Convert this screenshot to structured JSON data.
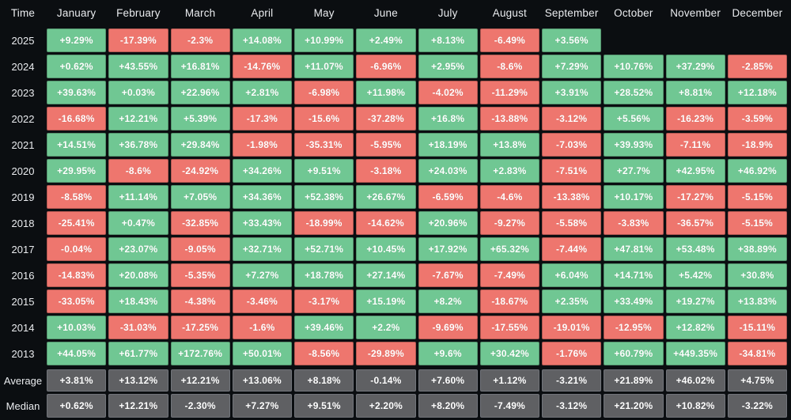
{
  "table": {
    "corner_label": "Time",
    "months": [
      "January",
      "February",
      "March",
      "April",
      "May",
      "June",
      "July",
      "August",
      "September",
      "October",
      "November",
      "December"
    ],
    "rows": [
      {
        "label": "2025",
        "type": "year",
        "values": [
          "+9.29%",
          "-17.39%",
          "-2.3%",
          "+14.08%",
          "+10.99%",
          "+2.49%",
          "+8.13%",
          "-6.49%",
          "+3.56%",
          null,
          null,
          null
        ]
      },
      {
        "label": "2024",
        "type": "year",
        "values": [
          "+0.62%",
          "+43.55%",
          "+16.81%",
          "-14.76%",
          "+11.07%",
          "-6.96%",
          "+2.95%",
          "-8.6%",
          "+7.29%",
          "+10.76%",
          "+37.29%",
          "-2.85%"
        ]
      },
      {
        "label": "2023",
        "type": "year",
        "values": [
          "+39.63%",
          "+0.03%",
          "+22.96%",
          "+2.81%",
          "-6.98%",
          "+11.98%",
          "-4.02%",
          "-11.29%",
          "+3.91%",
          "+28.52%",
          "+8.81%",
          "+12.18%"
        ]
      },
      {
        "label": "2022",
        "type": "year",
        "values": [
          "-16.68%",
          "+12.21%",
          "+5.39%",
          "-17.3%",
          "-15.6%",
          "-37.28%",
          "+16.8%",
          "-13.88%",
          "-3.12%",
          "+5.56%",
          "-16.23%",
          "-3.59%"
        ]
      },
      {
        "label": "2021",
        "type": "year",
        "values": [
          "+14.51%",
          "+36.78%",
          "+29.84%",
          "-1.98%",
          "-35.31%",
          "-5.95%",
          "+18.19%",
          "+13.8%",
          "-7.03%",
          "+39.93%",
          "-7.11%",
          "-18.9%"
        ]
      },
      {
        "label": "2020",
        "type": "year",
        "values": [
          "+29.95%",
          "-8.6%",
          "-24.92%",
          "+34.26%",
          "+9.51%",
          "-3.18%",
          "+24.03%",
          "+2.83%",
          "-7.51%",
          "+27.7%",
          "+42.95%",
          "+46.92%"
        ]
      },
      {
        "label": "2019",
        "type": "year",
        "values": [
          "-8.58%",
          "+11.14%",
          "+7.05%",
          "+34.36%",
          "+52.38%",
          "+26.67%",
          "-6.59%",
          "-4.6%",
          "-13.38%",
          "+10.17%",
          "-17.27%",
          "-5.15%"
        ]
      },
      {
        "label": "2018",
        "type": "year",
        "values": [
          "-25.41%",
          "+0.47%",
          "-32.85%",
          "+33.43%",
          "-18.99%",
          "-14.62%",
          "+20.96%",
          "-9.27%",
          "-5.58%",
          "-3.83%",
          "-36.57%",
          "-5.15%"
        ]
      },
      {
        "label": "2017",
        "type": "year",
        "values": [
          "-0.04%",
          "+23.07%",
          "-9.05%",
          "+32.71%",
          "+52.71%",
          "+10.45%",
          "+17.92%",
          "+65.32%",
          "-7.44%",
          "+47.81%",
          "+53.48%",
          "+38.89%"
        ]
      },
      {
        "label": "2016",
        "type": "year",
        "values": [
          "-14.83%",
          "+20.08%",
          "-5.35%",
          "+7.27%",
          "+18.78%",
          "+27.14%",
          "-7.67%",
          "-7.49%",
          "+6.04%",
          "+14.71%",
          "+5.42%",
          "+30.8%"
        ]
      },
      {
        "label": "2015",
        "type": "year",
        "values": [
          "-33.05%",
          "+18.43%",
          "-4.38%",
          "-3.46%",
          "-3.17%",
          "+15.19%",
          "+8.2%",
          "-18.67%",
          "+2.35%",
          "+33.49%",
          "+19.27%",
          "+13.83%"
        ]
      },
      {
        "label": "2014",
        "type": "year",
        "values": [
          "+10.03%",
          "-31.03%",
          "-17.25%",
          "-1.6%",
          "+39.46%",
          "+2.2%",
          "-9.69%",
          "-17.55%",
          "-19.01%",
          "-12.95%",
          "+12.82%",
          "-15.11%"
        ]
      },
      {
        "label": "2013",
        "type": "year",
        "values": [
          "+44.05%",
          "+61.77%",
          "+172.76%",
          "+50.01%",
          "-8.56%",
          "-29.89%",
          "+9.6%",
          "+30.42%",
          "-1.76%",
          "+60.79%",
          "+449.35%",
          "-34.81%"
        ]
      },
      {
        "label": "Average",
        "type": "summary",
        "values": [
          "+3.81%",
          "+13.12%",
          "+12.21%",
          "+13.06%",
          "+8.18%",
          "-0.14%",
          "+7.60%",
          "+1.12%",
          "-3.21%",
          "+21.89%",
          "+46.02%",
          "+4.75%"
        ]
      },
      {
        "label": "Median",
        "type": "summary",
        "values": [
          "+0.62%",
          "+12.21%",
          "-2.30%",
          "+7.27%",
          "+9.51%",
          "+2.20%",
          "+8.20%",
          "-7.49%",
          "-3.12%",
          "+21.20%",
          "+10.82%",
          "-3.22%"
        ]
      }
    ]
  },
  "colors": {
    "background": "#0b0e11",
    "positive": "#70c793",
    "negative": "#ee766e",
    "summary": "#5f6063",
    "header_text": "#eaecef",
    "cell_text": "#ffffff"
  },
  "chart_data": {
    "type": "heatmap",
    "unit": "%",
    "x_categories": [
      "January",
      "February",
      "March",
      "April",
      "May",
      "June",
      "July",
      "August",
      "September",
      "October",
      "November",
      "December"
    ],
    "y_categories": [
      "2025",
      "2024",
      "2023",
      "2022",
      "2021",
      "2020",
      "2019",
      "2018",
      "2017",
      "2016",
      "2015",
      "2014",
      "2013",
      "Average",
      "Median"
    ],
    "values": [
      [
        9.29,
        -17.39,
        -2.3,
        14.08,
        10.99,
        2.49,
        8.13,
        -6.49,
        3.56,
        null,
        null,
        null
      ],
      [
        0.62,
        43.55,
        16.81,
        -14.76,
        11.07,
        -6.96,
        2.95,
        -8.6,
        7.29,
        10.76,
        37.29,
        -2.85
      ],
      [
        39.63,
        0.03,
        22.96,
        2.81,
        -6.98,
        11.98,
        -4.02,
        -11.29,
        3.91,
        28.52,
        8.81,
        12.18
      ],
      [
        -16.68,
        12.21,
        5.39,
        -17.3,
        -15.6,
        -37.28,
        16.8,
        -13.88,
        -3.12,
        5.56,
        -16.23,
        -3.59
      ],
      [
        14.51,
        36.78,
        29.84,
        -1.98,
        -35.31,
        -5.95,
        18.19,
        13.8,
        -7.03,
        39.93,
        -7.11,
        -18.9
      ],
      [
        29.95,
        -8.6,
        -24.92,
        34.26,
        9.51,
        -3.18,
        24.03,
        2.83,
        -7.51,
        27.7,
        42.95,
        46.92
      ],
      [
        -8.58,
        11.14,
        7.05,
        34.36,
        52.38,
        26.67,
        -6.59,
        -4.6,
        -13.38,
        10.17,
        -17.27,
        -5.15
      ],
      [
        -25.41,
        0.47,
        -32.85,
        33.43,
        -18.99,
        -14.62,
        20.96,
        -9.27,
        -5.58,
        -3.83,
        -36.57,
        -5.15
      ],
      [
        -0.04,
        23.07,
        -9.05,
        32.71,
        52.71,
        10.45,
        17.92,
        65.32,
        -7.44,
        47.81,
        53.48,
        38.89
      ],
      [
        -14.83,
        20.08,
        -5.35,
        7.27,
        18.78,
        27.14,
        -7.67,
        -7.49,
        6.04,
        14.71,
        5.42,
        30.8
      ],
      [
        -33.05,
        18.43,
        -4.38,
        -3.46,
        -3.17,
        15.19,
        8.2,
        -18.67,
        2.35,
        33.49,
        19.27,
        13.83
      ],
      [
        10.03,
        -31.03,
        -17.25,
        -1.6,
        39.46,
        2.2,
        -9.69,
        -17.55,
        -19.01,
        -12.95,
        12.82,
        -15.11
      ],
      [
        44.05,
        61.77,
        172.76,
        50.01,
        -8.56,
        -29.89,
        9.6,
        30.42,
        -1.76,
        60.79,
        449.35,
        -34.81
      ],
      [
        3.81,
        13.12,
        12.21,
        13.06,
        8.18,
        -0.14,
        7.6,
        1.12,
        -3.21,
        21.89,
        46.02,
        4.75
      ],
      [
        0.62,
        12.21,
        -2.3,
        7.27,
        9.51,
        2.2,
        8.2,
        -7.49,
        -3.12,
        21.2,
        10.82,
        -3.22
      ]
    ],
    "legend": "green = positive monthly return, red = negative monthly return, gray = summary (Average/Median) rows",
    "grid": false,
    "cell_gap_color": "#0b0e11"
  }
}
